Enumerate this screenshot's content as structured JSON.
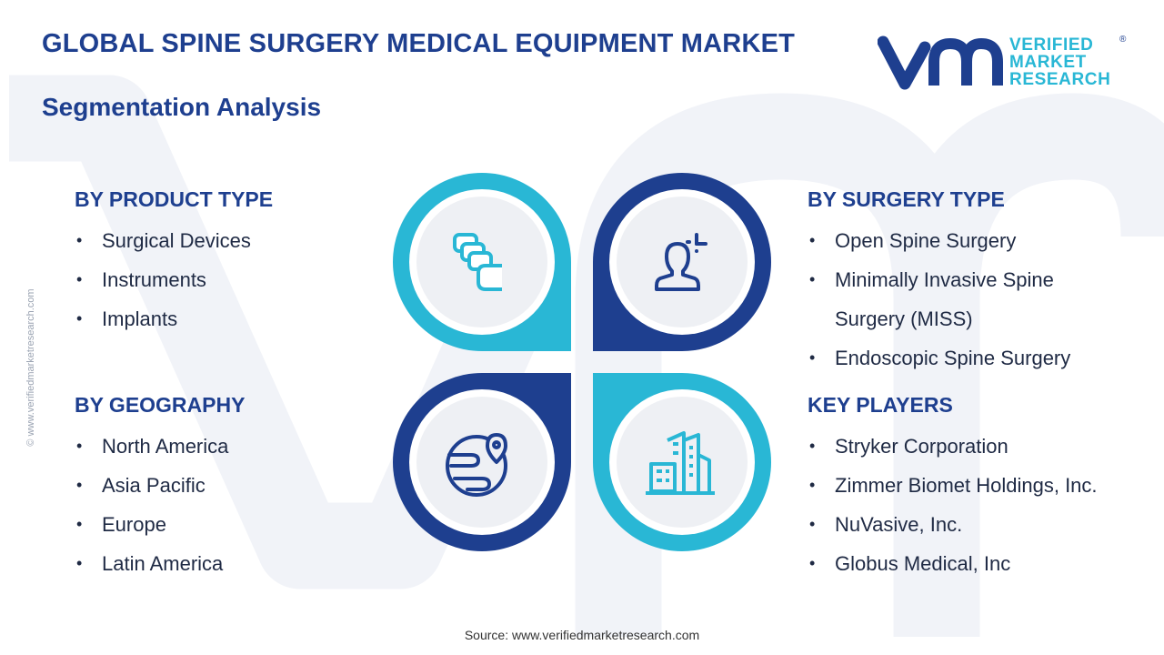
{
  "header": {
    "title": "GLOBAL SPINE SURGERY MEDICAL EQUIPMENT MARKET",
    "subtitle": "Segmentation Analysis"
  },
  "logo": {
    "line1": "VERIFIED",
    "line2": "MARKET",
    "line3": "RESEARCH",
    "mark": "®"
  },
  "side_watermark": "© www.verifiedmarketresearch.com",
  "segments": {
    "product_type": {
      "heading": "BY PRODUCT TYPE",
      "items": [
        "Surgical Devices",
        "Instruments",
        "Implants"
      ],
      "icon": "stacked-vertebrae-icon"
    },
    "geography": {
      "heading": "BY GEOGRAPHY",
      "items": [
        "North America",
        "Asia Pacific",
        "Europe",
        "Latin America"
      ],
      "icon": "globe-location-icon"
    },
    "surgery_type": {
      "heading": "BY SURGERY TYPE",
      "items": [
        "Open Spine Surgery",
        "Minimally Invasive Spine",
        "Surgery (MISS)",
        "Endoscopic Spine Surgery"
      ],
      "icon": "person-focus-icon"
    },
    "key_players": {
      "heading": "KEY PLAYERS",
      "items": [
        "Stryker Corporation",
        "Zimmer Biomet Holdings, Inc.",
        "NuVasive, Inc.",
        "Globus Medical, Inc"
      ],
      "icon": "city-buildings-icon"
    }
  },
  "footer": {
    "source": "Source: www.verifiedmarketresearch.com"
  },
  "colors": {
    "navy": "#1e3f8f",
    "cyan": "#29b7d5",
    "text": "#1f2a44",
    "circle_fill": "#eef0f4"
  }
}
